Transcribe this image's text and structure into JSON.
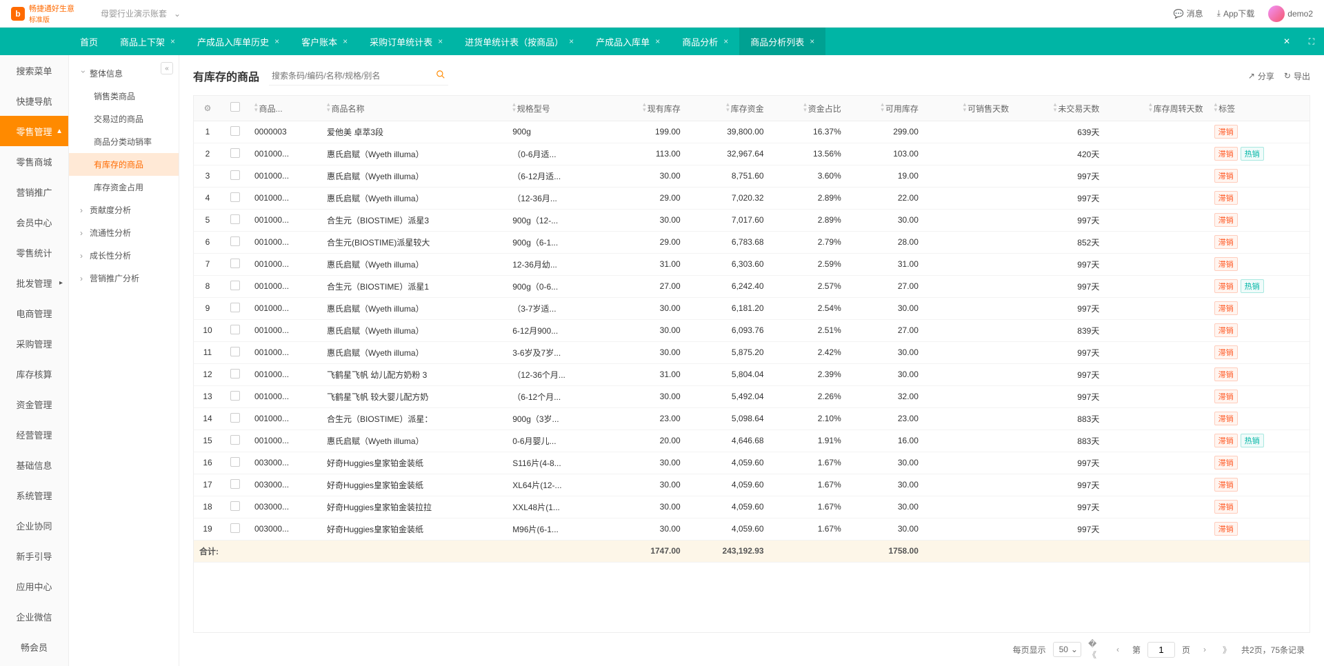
{
  "header": {
    "logo_text": "畅捷通好生意",
    "logo_badge": "标准版",
    "account": "母婴行业演示账套",
    "msg": "消息",
    "app_download": "App下载",
    "user": "demo2"
  },
  "tabs": [
    {
      "label": "首页",
      "closable": false
    },
    {
      "label": "商品上下架",
      "closable": true
    },
    {
      "label": "产成品入库单历史",
      "closable": true
    },
    {
      "label": "客户账本",
      "closable": true
    },
    {
      "label": "采购订单统计表",
      "closable": true
    },
    {
      "label": "进货单统计表（按商品）",
      "closable": true
    },
    {
      "label": "产成品入库单",
      "closable": true
    },
    {
      "label": "商品分析",
      "closable": true
    },
    {
      "label": "商品分析列表",
      "closable": true,
      "active": true
    }
  ],
  "nav": [
    {
      "label": "搜索菜单"
    },
    {
      "label": "快捷导航"
    },
    {
      "label": "零售管理",
      "active": true,
      "caret": "▲"
    },
    {
      "label": "零售商城"
    },
    {
      "label": "营销推广"
    },
    {
      "label": "会员中心"
    },
    {
      "label": "零售统计"
    },
    {
      "label": "批发管理",
      "caret": "▸"
    },
    {
      "label": "电商管理"
    },
    {
      "label": "采购管理"
    },
    {
      "label": "库存核算"
    },
    {
      "label": "资金管理"
    },
    {
      "label": "经营管理"
    },
    {
      "label": "基础信息"
    },
    {
      "label": "系统管理"
    },
    {
      "label": "企业协同"
    },
    {
      "label": "新手引导"
    },
    {
      "label": "应用中心"
    },
    {
      "label": "企业微信"
    },
    {
      "label": "畅会员"
    }
  ],
  "tree": {
    "root": "整体信息",
    "children": [
      "销售类商品",
      "交易过的商品",
      "商品分类动销率",
      "有库存的商品",
      "库存资金占用"
    ],
    "active_child": "有库存的商品",
    "siblings": [
      "贡献度分析",
      "流通性分析",
      "成长性分析",
      "营销推广分析"
    ]
  },
  "content": {
    "title": "有库存的商品",
    "search_placeholder": "搜索条码/编码/名称/规格/别名",
    "share": "分享",
    "export": "导出"
  },
  "table": {
    "columns": [
      "",
      "",
      "商品...",
      "商品名称",
      "规格型号",
      "现有库存",
      "库存资金",
      "资金占比",
      "可用库存",
      "可销售天数",
      "未交易天数",
      "库存周转天数",
      "标签"
    ],
    "rows": [
      {
        "n": 1,
        "code": "0000003",
        "name": "爱他美 卓萃3段",
        "spec": "900g",
        "stock": "199.00",
        "fund": "39,800.00",
        "pct": "16.37%",
        "avail": "299.00",
        "sale_days": "",
        "noTx": "639天",
        "turn": "",
        "tags": [
          "滞销"
        ]
      },
      {
        "n": 2,
        "code": "001000...",
        "name": "惠氏启赋（Wyeth illuma）",
        "spec": "（0-6月适...",
        "stock": "113.00",
        "fund": "32,967.64",
        "pct": "13.56%",
        "avail": "103.00",
        "sale_days": "",
        "noTx": "420天",
        "turn": "",
        "tags": [
          "滞销",
          "热销"
        ]
      },
      {
        "n": 3,
        "code": "001000...",
        "name": "惠氏启赋（Wyeth illuma）",
        "spec": "（6-12月适...",
        "stock": "30.00",
        "fund": "8,751.60",
        "pct": "3.60%",
        "avail": "19.00",
        "sale_days": "",
        "noTx": "997天",
        "turn": "",
        "tags": [
          "滞销"
        ]
      },
      {
        "n": 4,
        "code": "001000...",
        "name": "惠氏启赋（Wyeth illuma）",
        "spec": "（12-36月...",
        "stock": "29.00",
        "fund": "7,020.32",
        "pct": "2.89%",
        "avail": "22.00",
        "sale_days": "",
        "noTx": "997天",
        "turn": "",
        "tags": [
          "滞销"
        ]
      },
      {
        "n": 5,
        "code": "001000...",
        "name": "合生元（BIOSTIME）派星3",
        "spec": "900g（12-...",
        "stock": "30.00",
        "fund": "7,017.60",
        "pct": "2.89%",
        "avail": "30.00",
        "sale_days": "",
        "noTx": "997天",
        "turn": "",
        "tags": [
          "滞销"
        ]
      },
      {
        "n": 6,
        "code": "001000...",
        "name": "合生元(BIOSTIME)派星较大",
        "spec": "900g（6-1...",
        "stock": "29.00",
        "fund": "6,783.68",
        "pct": "2.79%",
        "avail": "28.00",
        "sale_days": "",
        "noTx": "852天",
        "turn": "",
        "tags": [
          "滞销"
        ]
      },
      {
        "n": 7,
        "code": "001000...",
        "name": "惠氏启赋（Wyeth illuma）",
        "spec": "12-36月幼...",
        "stock": "31.00",
        "fund": "6,303.60",
        "pct": "2.59%",
        "avail": "31.00",
        "sale_days": "",
        "noTx": "997天",
        "turn": "",
        "tags": [
          "滞销"
        ]
      },
      {
        "n": 8,
        "code": "001000...",
        "name": "合生元（BIOSTIME）派星1",
        "spec": "900g（0-6...",
        "stock": "27.00",
        "fund": "6,242.40",
        "pct": "2.57%",
        "avail": "27.00",
        "sale_days": "",
        "noTx": "997天",
        "turn": "",
        "tags": [
          "滞销",
          "热销"
        ]
      },
      {
        "n": 9,
        "code": "001000...",
        "name": "惠氏启赋（Wyeth illuma）",
        "spec": "（3-7岁适...",
        "stock": "30.00",
        "fund": "6,181.20",
        "pct": "2.54%",
        "avail": "30.00",
        "sale_days": "",
        "noTx": "997天",
        "turn": "",
        "tags": [
          "滞销"
        ]
      },
      {
        "n": 10,
        "code": "001000...",
        "name": "惠氏启赋（Wyeth illuma）",
        "spec": "6-12月900...",
        "stock": "30.00",
        "fund": "6,093.76",
        "pct": "2.51%",
        "avail": "27.00",
        "sale_days": "",
        "noTx": "839天",
        "turn": "",
        "tags": [
          "滞销"
        ]
      },
      {
        "n": 11,
        "code": "001000...",
        "name": "惠氏启赋（Wyeth illuma）",
        "spec": "3-6岁及7岁...",
        "stock": "30.00",
        "fund": "5,875.20",
        "pct": "2.42%",
        "avail": "30.00",
        "sale_days": "",
        "noTx": "997天",
        "turn": "",
        "tags": [
          "滞销"
        ]
      },
      {
        "n": 12,
        "code": "001000...",
        "name": "飞鹤星飞帆 幼儿配方奶粉 3",
        "spec": "（12-36个月...",
        "stock": "31.00",
        "fund": "5,804.04",
        "pct": "2.39%",
        "avail": "30.00",
        "sale_days": "",
        "noTx": "997天",
        "turn": "",
        "tags": [
          "滞销"
        ]
      },
      {
        "n": 13,
        "code": "001000...",
        "name": "飞鹤星飞帆 较大婴儿配方奶",
        "spec": "（6-12个月...",
        "stock": "30.00",
        "fund": "5,492.04",
        "pct": "2.26%",
        "avail": "32.00",
        "sale_days": "",
        "noTx": "997天",
        "turn": "",
        "tags": [
          "滞销"
        ]
      },
      {
        "n": 14,
        "code": "001000...",
        "name": "合生元（BIOSTIME）派星：",
        "spec": "900g（3岁...",
        "stock": "23.00",
        "fund": "5,098.64",
        "pct": "2.10%",
        "avail": "23.00",
        "sale_days": "",
        "noTx": "883天",
        "turn": "",
        "tags": [
          "滞销"
        ]
      },
      {
        "n": 15,
        "code": "001000...",
        "name": "惠氏启赋（Wyeth illuma）",
        "spec": "0-6月婴儿...",
        "stock": "20.00",
        "fund": "4,646.68",
        "pct": "1.91%",
        "avail": "16.00",
        "sale_days": "",
        "noTx": "883天",
        "turn": "",
        "tags": [
          "滞销",
          "热销"
        ]
      },
      {
        "n": 16,
        "code": "003000...",
        "name": "好奇Huggies皇家铂金装纸",
        "spec": "S116片(4-8...",
        "stock": "30.00",
        "fund": "4,059.60",
        "pct": "1.67%",
        "avail": "30.00",
        "sale_days": "",
        "noTx": "997天",
        "turn": "",
        "tags": [
          "滞销"
        ]
      },
      {
        "n": 17,
        "code": "003000...",
        "name": "好奇Huggies皇家铂金装纸",
        "spec": "XL64片(12-...",
        "stock": "30.00",
        "fund": "4,059.60",
        "pct": "1.67%",
        "avail": "30.00",
        "sale_days": "",
        "noTx": "997天",
        "turn": "",
        "tags": [
          "滞销"
        ]
      },
      {
        "n": 18,
        "code": "003000...",
        "name": "好奇Huggies皇家铂金装拉拉",
        "spec": "XXL48片(1...",
        "stock": "30.00",
        "fund": "4,059.60",
        "pct": "1.67%",
        "avail": "30.00",
        "sale_days": "",
        "noTx": "997天",
        "turn": "",
        "tags": [
          "滞销"
        ]
      },
      {
        "n": 19,
        "code": "003000...",
        "name": "好奇Huggies皇家铂金装纸",
        "spec": "M96片(6-1...",
        "stock": "30.00",
        "fund": "4,059.60",
        "pct": "1.67%",
        "avail": "30.00",
        "sale_days": "",
        "noTx": "997天",
        "turn": "",
        "tags": [
          "滞销"
        ]
      }
    ],
    "footer": {
      "label": "合计:",
      "stock": "1747.00",
      "fund": "243,192.93",
      "avail": "1758.00"
    }
  },
  "pagination": {
    "per_page_label": "每页显示",
    "per_page": "50",
    "page_label_prefix": "第",
    "page": "1",
    "page_label_suffix": "页",
    "summary": "共2页，75条记录"
  }
}
